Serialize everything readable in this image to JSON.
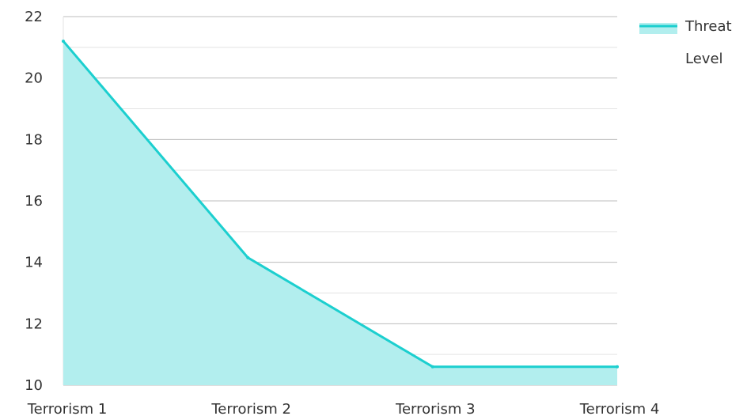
{
  "chart_data": {
    "type": "area",
    "categories": [
      "Terrorism 1",
      "Terrorism 2",
      "Terrorism 3",
      "Terrorism 4"
    ],
    "series": [
      {
        "name": "Threat Level",
        "values": [
          21.2,
          14.15,
          10.6,
          10.6
        ]
      }
    ],
    "ylim": [
      10,
      22
    ],
    "yticks": [
      10,
      12,
      14,
      16,
      18,
      20,
      22
    ],
    "grid": true,
    "legend": "top-right",
    "colors": {
      "line": "#1ccfcf",
      "fill": "#b2eeee",
      "grid_major": "#bdbdbd",
      "grid_minor": "#e3e3e3"
    }
  },
  "legend": {
    "line1": "Threat",
    "line2": "Level"
  }
}
